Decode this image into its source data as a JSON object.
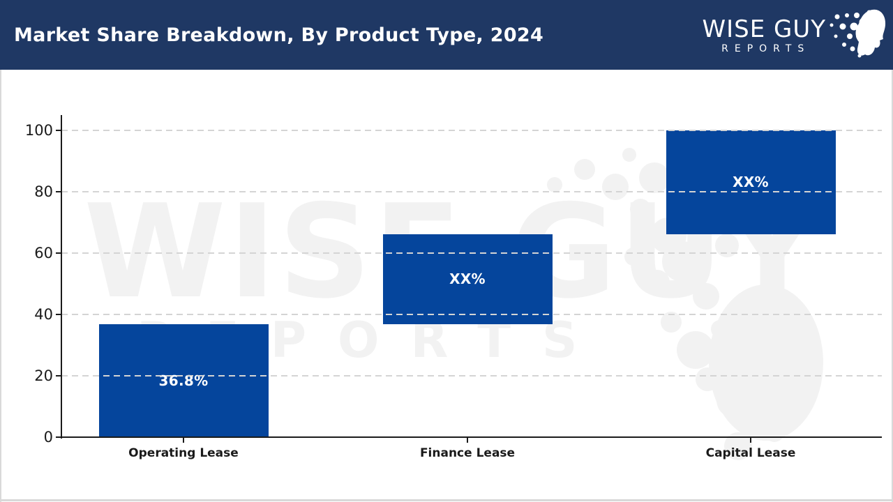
{
  "header": {
    "title": "Market Share Breakdown, By Product Type, 2024",
    "bg_color": "#1f3864",
    "logo": {
      "line1": "WISE GUY",
      "line2": "REPORTS"
    }
  },
  "watermark": {
    "line1": "WISE GUY",
    "line2": "REPORTS"
  },
  "chart_data": {
    "type": "bar",
    "variant": "waterfall",
    "title": "Market Share Breakdown, By Product Type, 2024",
    "categories": [
      "Operating Lease",
      "Finance Lease",
      "Capital Lease"
    ],
    "bars": [
      {
        "category": "Operating Lease",
        "start": 0,
        "end": 36.8,
        "label": "36.8%"
      },
      {
        "category": "Finance Lease",
        "start": 36.8,
        "end": 66.2,
        "label": "XX%"
      },
      {
        "category": "Capital Lease",
        "start": 66.2,
        "end": 100,
        "label": "XX%"
      }
    ],
    "ylim": [
      0,
      100
    ],
    "yticks": [
      0,
      20,
      40,
      60,
      80,
      100
    ],
    "grid": "horizontal-dashed",
    "legend": "none",
    "xlabel": "",
    "ylabel": "",
    "bar_color": "#05459c",
    "value_label_color": "#ffffff",
    "grid_color": "#d4d4d4",
    "axis_color": "#1a1a1a",
    "watermark_color": "#f2f2f2"
  }
}
